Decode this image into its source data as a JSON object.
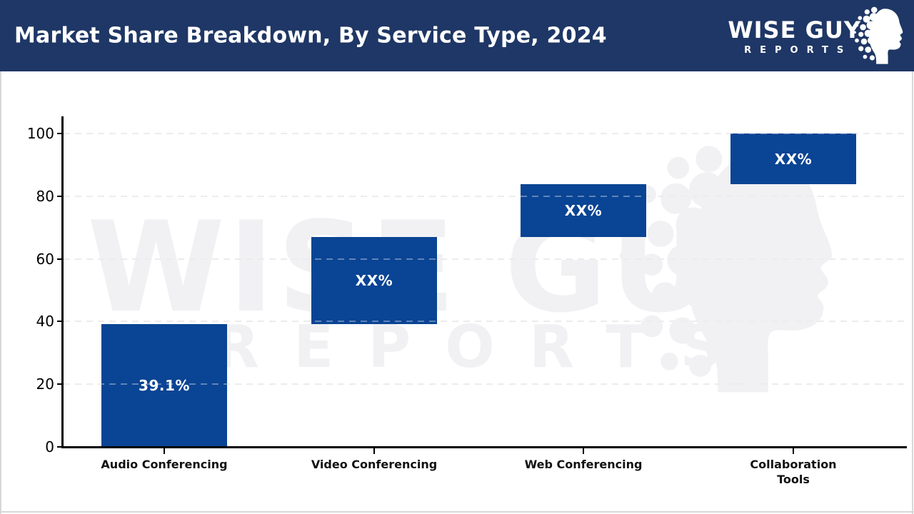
{
  "header": {
    "title": "Market Share Breakdown, By Service Type, 2024",
    "logo": {
      "line1": "WISE GUY",
      "line2": "REPORTS"
    }
  },
  "watermark": {
    "line1": "WISE GUY",
    "line2": "REPORTS"
  },
  "chart_data": {
    "type": "bar",
    "subtype": "waterfall",
    "title": "Market Share Breakdown, By Service Type, 2024",
    "xlabel": "",
    "ylabel": "",
    "categories": [
      "Audio Conferencing",
      "Video Conferencing",
      "Web Conferencing",
      "Collaboration Tools"
    ],
    "category_lines": [
      [
        "Audio Conferencing"
      ],
      [
        "Video Conferencing"
      ],
      [
        "Web Conferencing"
      ],
      [
        "Collaboration",
        "Tools"
      ]
    ],
    "bars": [
      {
        "category": "Audio Conferencing",
        "start": 0,
        "end": 39.1,
        "label": "39.1%"
      },
      {
        "category": "Video Conferencing",
        "start": 39.1,
        "end": 67.0,
        "label": "XX%"
      },
      {
        "category": "Web Conferencing",
        "start": 67.0,
        "end": 83.8,
        "label": "XX%"
      },
      {
        "category": "Collaboration Tools",
        "start": 83.8,
        "end": 100.0,
        "label": "XX%"
      }
    ],
    "yticks": [
      0,
      20,
      40,
      60,
      80,
      100
    ],
    "ylim": [
      0,
      105
    ],
    "grid": "dashed-horizontal",
    "legend": "none",
    "bar_color": "#0a4494",
    "bar_label_color": "#ffffff"
  },
  "colors": {
    "header_bg": "#1f3766",
    "header_text": "#ffffff",
    "watermark": "#f1f1f4",
    "axis": "#000000",
    "grid": "#e2e2e4",
    "frame_border": "#d8d8d8"
  }
}
